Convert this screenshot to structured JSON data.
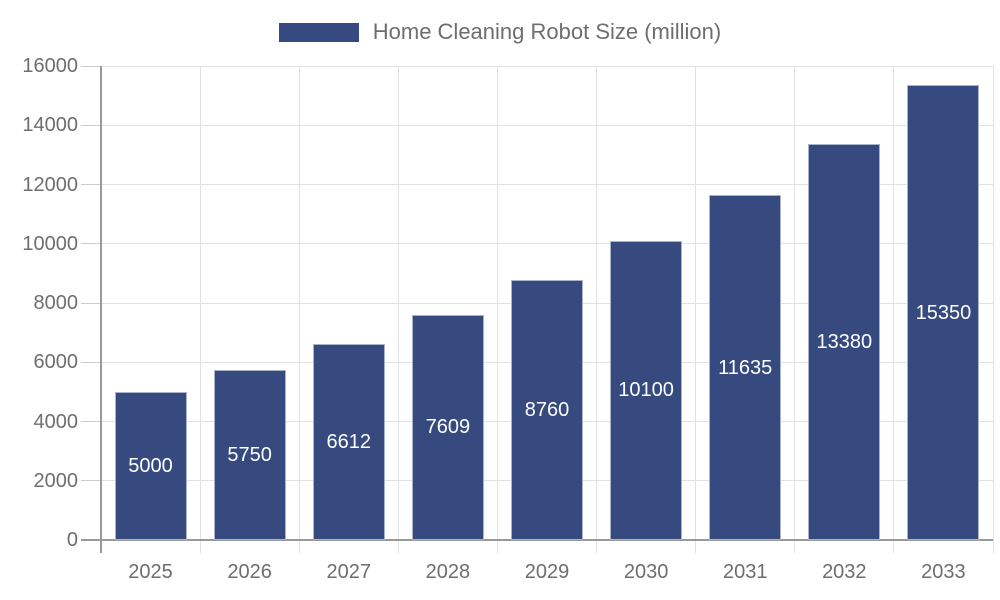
{
  "chart_data": {
    "type": "bar",
    "title": "Home Cleaning Robot Size (million)",
    "legend": [
      "Home Cleaning Robot Size (million)"
    ],
    "legend_position": "top-center",
    "categories": [
      "2025",
      "2026",
      "2027",
      "2028",
      "2029",
      "2030",
      "2031",
      "2032",
      "2033"
    ],
    "values": [
      5000,
      5750,
      6612,
      7609,
      8760,
      10100,
      11635,
      13380,
      15350
    ],
    "xlabel": "",
    "ylabel": "",
    "ylim": [
      0,
      16000
    ],
    "ytick_step": 2000,
    "ytick_labels": [
      "0",
      "2000",
      "4000",
      "6000",
      "8000",
      "10000",
      "12000",
      "14000",
      "16000"
    ],
    "grid": true,
    "bar_label_style": "white text vertically centered inside each bar"
  },
  "colors": {
    "bar_fill": "#364A80",
    "bar_border": "#AAB2CC",
    "axis_line": "#999999",
    "gridline": "#E2E2E2",
    "tick_mark": "#CCCCCC",
    "tick_text": "#6E6E6E",
    "bar_label_text": "#FFFFFF",
    "background": "#FFFFFF"
  }
}
